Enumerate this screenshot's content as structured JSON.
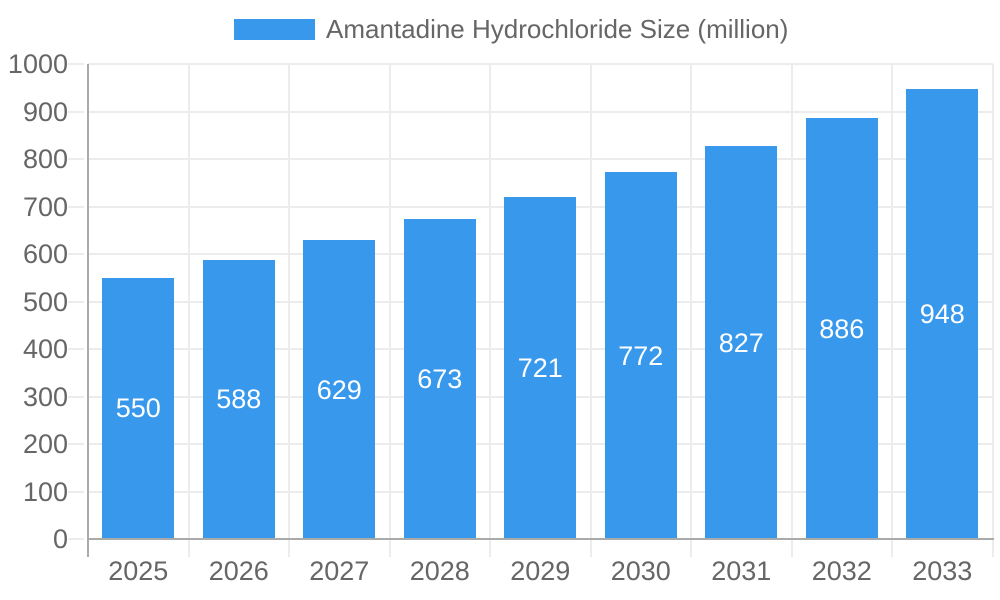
{
  "chart_data": {
    "type": "bar",
    "legend": "Amantadine Hydrochloride Size (million)",
    "legend_position": "top",
    "categories": [
      "2025",
      "2026",
      "2027",
      "2028",
      "2029",
      "2030",
      "2031",
      "2032",
      "2033"
    ],
    "values": [
      550,
      588,
      629,
      673,
      721,
      772,
      827,
      886,
      948
    ],
    "ylim": [
      0,
      1000
    ],
    "ytick_step": 100,
    "grid": true,
    "bar_labels_shown": true,
    "colors": {
      "bar": "#3899EC",
      "bar_label": "#FFFFFF",
      "axis_text": "#666666",
      "legend_text": "#666666",
      "gridline": "#ECECEC",
      "axis_line": "#AAAAAA",
      "background": "#FFFFFF"
    }
  }
}
